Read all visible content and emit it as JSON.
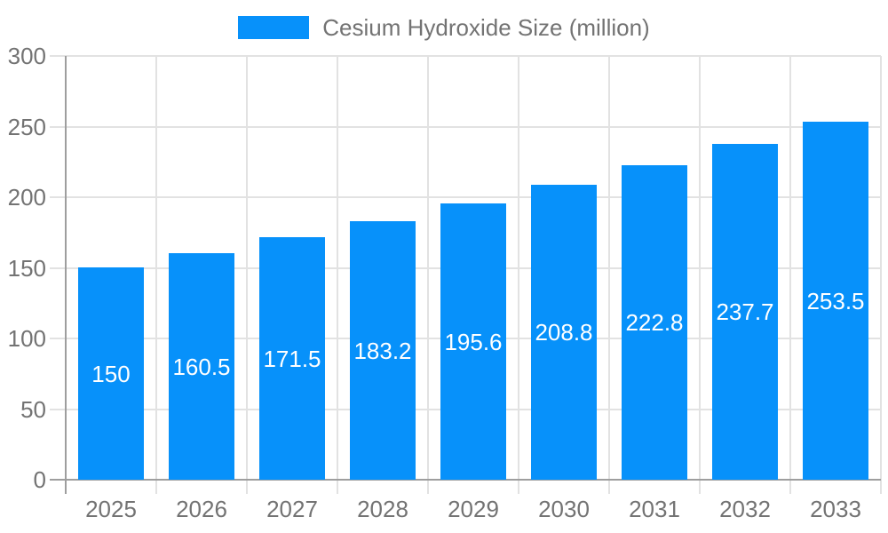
{
  "legend": {
    "label": "Cesium Hydroxide Size (million)"
  },
  "chart_data": {
    "type": "bar",
    "title": "Cesium Hydroxide Size (million)",
    "categories": [
      "2025",
      "2026",
      "2027",
      "2028",
      "2029",
      "2030",
      "2031",
      "2032",
      "2033"
    ],
    "series": [
      {
        "name": "Cesium Hydroxide Size (million)",
        "values": [
          150,
          160.5,
          171.5,
          183.2,
          195.6,
          208.8,
          222.8,
          237.7,
          253.5
        ]
      }
    ],
    "value_labels": [
      "150",
      "160.5",
      "171.5",
      "183.2",
      "195.6",
      "208.8",
      "222.8",
      "237.7",
      "253.5"
    ],
    "xlabel": "",
    "ylabel": "",
    "ylim": [
      0,
      300
    ],
    "yticks": [
      0,
      50,
      100,
      150,
      200,
      250,
      300
    ],
    "grid": true,
    "legend_position": "top"
  },
  "colors": {
    "bar": "#0791fa",
    "grid": "#e2e2e2",
    "axis": "#9e9e9e",
    "label": "#737373",
    "value_label": "#ffffff",
    "background": "#ffffff"
  }
}
